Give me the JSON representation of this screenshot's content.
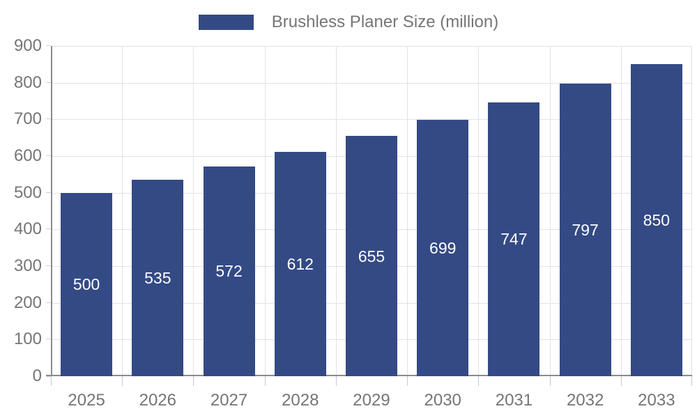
{
  "chart_data": {
    "type": "bar",
    "title": "Brushless Planer Size (million)",
    "legend_entries": [
      "Brushless Planer Size (million)"
    ],
    "legend_position": "top-center",
    "categories": [
      "2025",
      "2026",
      "2027",
      "2028",
      "2029",
      "2030",
      "2031",
      "2032",
      "2033"
    ],
    "values": [
      500,
      535,
      572,
      612,
      655,
      699,
      747,
      797,
      850
    ],
    "value_labels": [
      "500",
      "535",
      "572",
      "612",
      "655",
      "699",
      "747",
      "797",
      "850"
    ],
    "xlabel": "",
    "ylabel": "",
    "ylim": [
      0,
      900
    ],
    "ytick_step": 100,
    "ytick_labels": [
      "0",
      "100",
      "200",
      "300",
      "400",
      "500",
      "600",
      "700",
      "800",
      "900"
    ],
    "grid": true,
    "colors": {
      "bar": "#344a85",
      "axis": "#8b8b8b",
      "grid": "#e2e2e6",
      "tick_y": "#cfcfcf",
      "tick_x": "#c3c9d6",
      "label": "#757575",
      "value_label": "#ffffff",
      "background": "#ffffff"
    }
  }
}
